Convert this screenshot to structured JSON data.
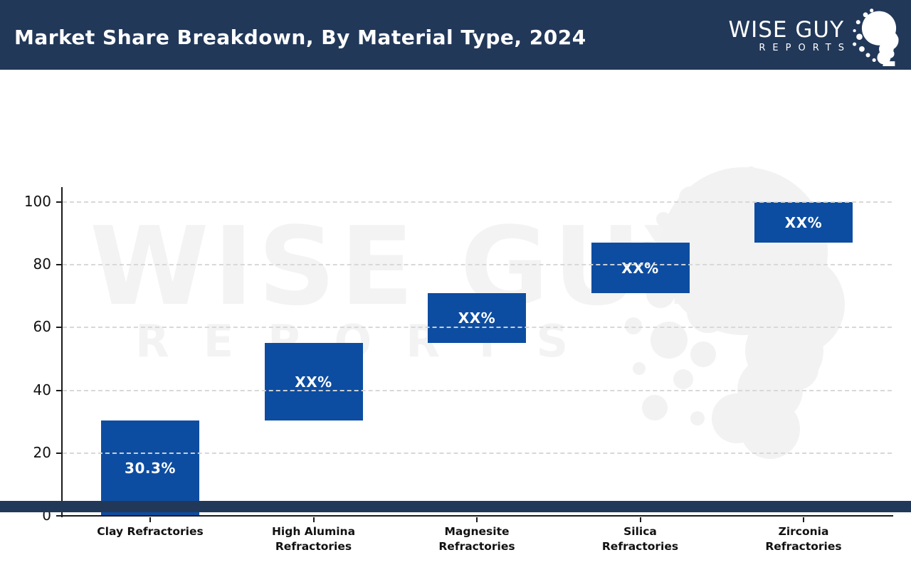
{
  "header": {
    "title": "Market Share Breakdown, By Material Type, 2024",
    "brand": {
      "line1": "WISE GUY",
      "line2": "REPORTS"
    }
  },
  "watermark": {
    "line1": "WISE GUY",
    "line2": "REPORTS"
  },
  "chart_data": {
    "type": "bar",
    "subtype": "waterfall",
    "title": "Market Share Breakdown, By Material Type, 2024",
    "xlabel": "",
    "ylabel": "",
    "ylim": [
      0,
      100
    ],
    "yticks": [
      0,
      20,
      40,
      60,
      80,
      100
    ],
    "grid": {
      "visible": true,
      "style": "dashed",
      "color": "#d6d6d6"
    },
    "legend": "none",
    "bar_color": "#0d4da1",
    "bar_label_color": "#ffffff",
    "categories": [
      "Clay Refractories",
      "High Alumina Refractories",
      "Magnesite Refractories",
      "Silica Refractories",
      "Zirconia Refractories"
    ],
    "category_lines": [
      [
        "Clay Refractories"
      ],
      [
        "High Alumina",
        "Refractories"
      ],
      [
        "Magnesite",
        "Refractories"
      ],
      [
        "Silica",
        "Refractories"
      ],
      [
        "Zirconia",
        "Refractories"
      ]
    ],
    "segments": [
      {
        "category": "Clay Refractories",
        "start": 0,
        "end": 30.3,
        "label": "30.3%"
      },
      {
        "category": "High Alumina Refractories",
        "start": 30.3,
        "end": 55,
        "label": "XX%"
      },
      {
        "category": "Magnesite Refractories",
        "start": 55,
        "end": 71,
        "label": "XX%"
      },
      {
        "category": "Silica Refractories",
        "start": 71,
        "end": 87,
        "label": "XX%"
      },
      {
        "category": "Zirconia Refractories",
        "start": 87,
        "end": 100,
        "label": "XX%"
      }
    ]
  }
}
